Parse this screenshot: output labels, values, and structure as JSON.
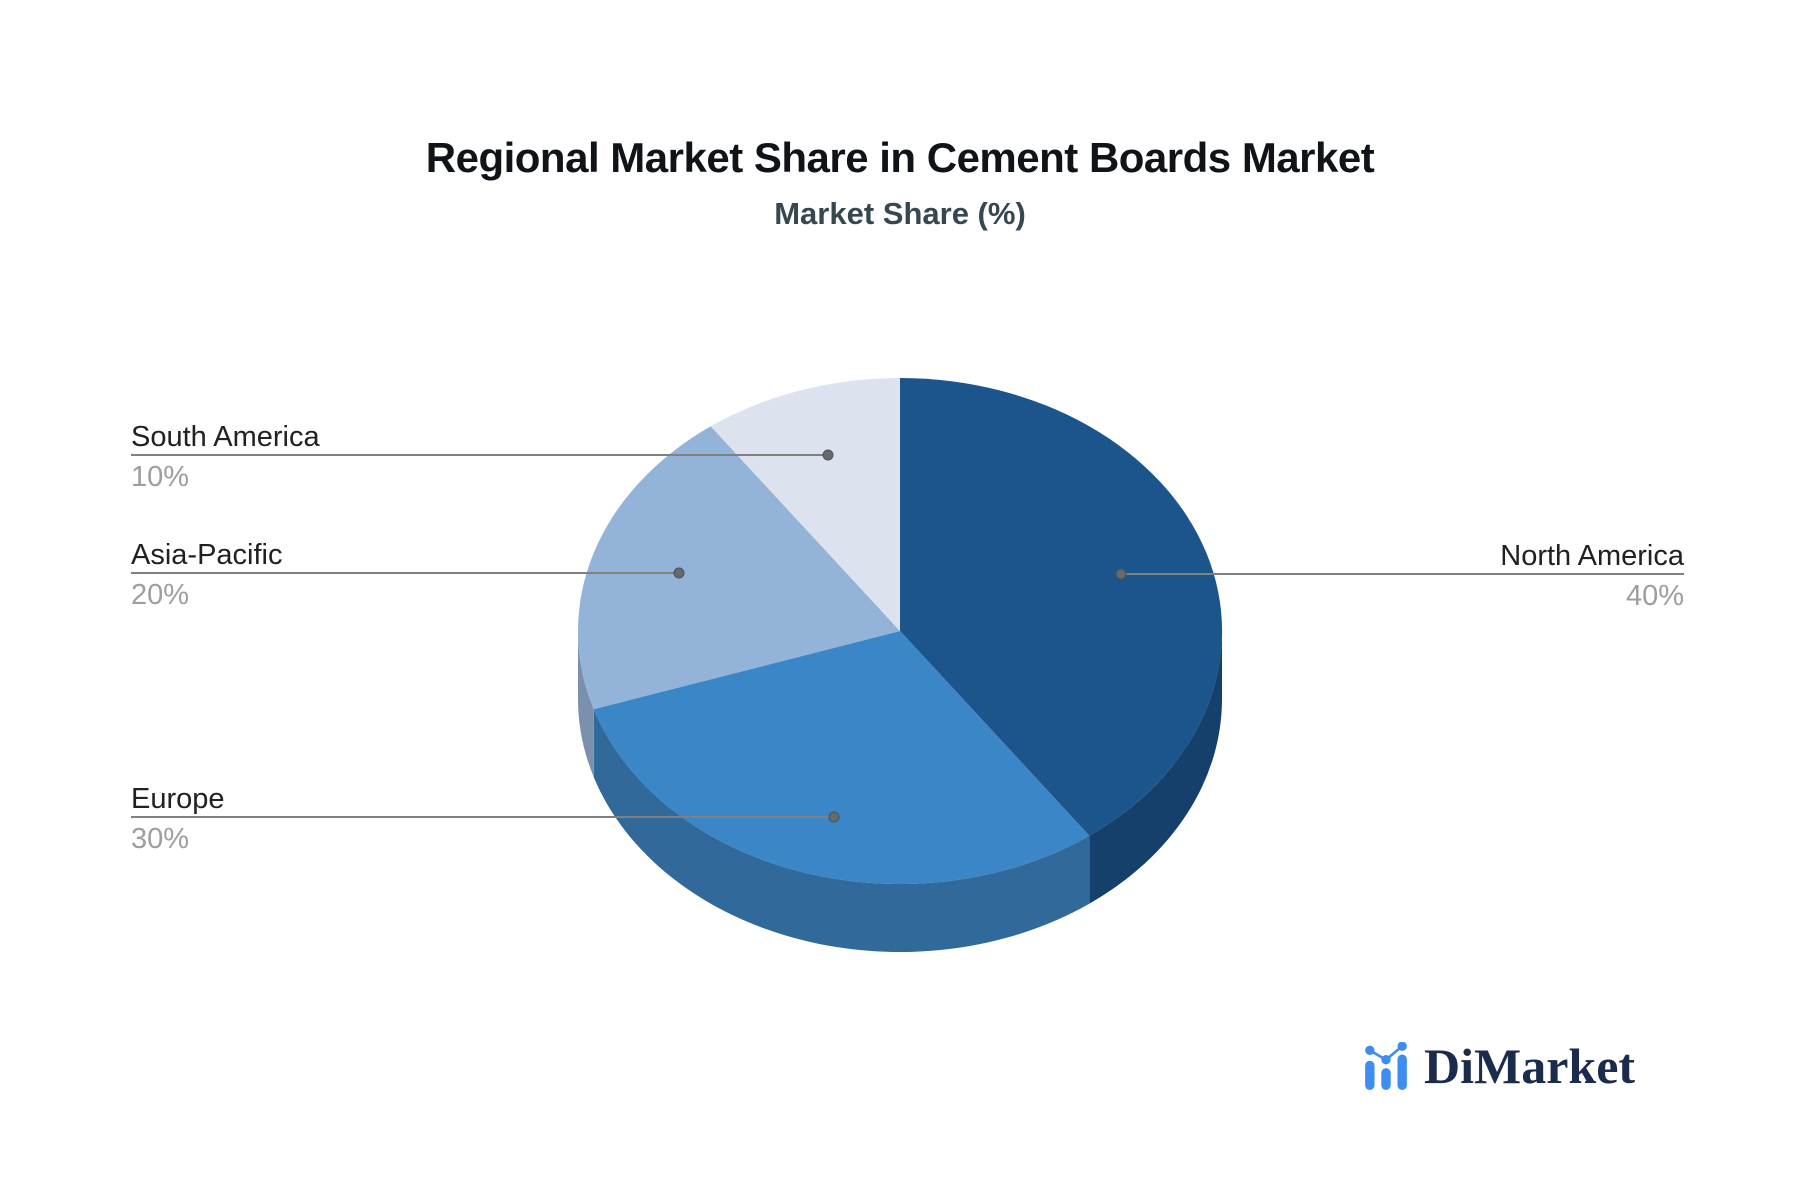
{
  "chart_data": {
    "type": "pie",
    "style": "3d",
    "title": "Regional Market Share in Cement Boards Market",
    "subtitle": "Market Share (%)",
    "unit": "%",
    "direction": "clockwise",
    "start_angle_deg": 0,
    "labels": [
      "North America",
      "Europe",
      "Asia-Pacific",
      "South America"
    ],
    "values": [
      40,
      30,
      20,
      10
    ],
    "value_labels": [
      "40%",
      "30%",
      "20%",
      "10%"
    ],
    "colors": [
      "#1B558C",
      "#3A86C7",
      "#93B4D8",
      "#DDE3EE"
    ],
    "side_colors": [
      "#15406C",
      "#31699A",
      "#7A90AC",
      "#B9C4D6"
    ],
    "legend": "none",
    "callout_line_color": "#808080",
    "label_text_color": "#212121",
    "value_text_color": "#9E9E9E"
  },
  "brand": {
    "name": "DiMarket",
    "accent": "#3E8DF2",
    "text_color": "#1B2B4B"
  }
}
